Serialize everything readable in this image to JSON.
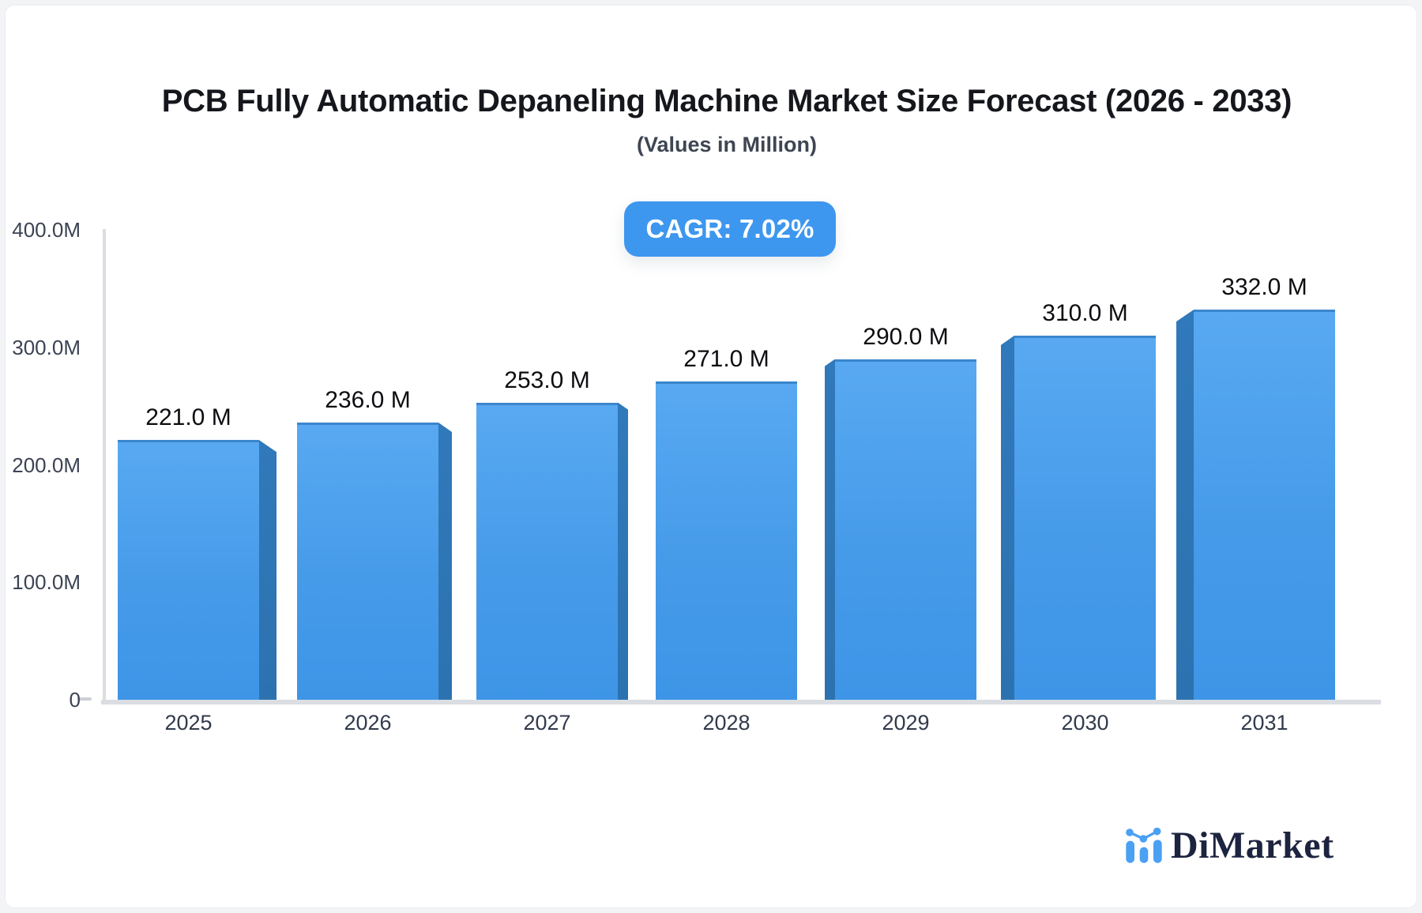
{
  "page": {
    "title": "PCB Fully Automatic Depaneling Machine Market Size Forecast (2026 - 2033)",
    "subtitle": "(Values in Million)",
    "cagr_badge": "CAGR: 7.02%",
    "brand": {
      "name": "DiMarket",
      "icon": "bar-chart-logo-icon",
      "accent_color": "#4aa0f3"
    }
  },
  "chart_data": {
    "type": "bar",
    "title": "PCB Fully Automatic Depaneling Machine Market Size Forecast (2026 - 2033)",
    "subtitle": "(Values in Million)",
    "cagr": "7.02%",
    "categories": [
      "2025",
      "2026",
      "2027",
      "2028",
      "2029",
      "2030",
      "2031"
    ],
    "values": [
      221,
      236,
      253,
      271,
      290,
      310,
      332
    ],
    "value_labels": [
      "221.0 M",
      "236.0 M",
      "253.0 M",
      "271.0 M",
      "290.0 M",
      "310.0 M",
      "332.0 M"
    ],
    "xlabel": "",
    "ylabel": "",
    "ylim": [
      0,
      400
    ],
    "yticks": [
      "400.0M",
      "300.0M",
      "200.0M",
      "100.0M",
      "0"
    ],
    "grid": false,
    "legend": "none",
    "effect": "3d-extruded-perspective",
    "bar_face_color": "#469be9",
    "bar_side_color": "#2f78b9",
    "axis_color": "#dadde2"
  }
}
